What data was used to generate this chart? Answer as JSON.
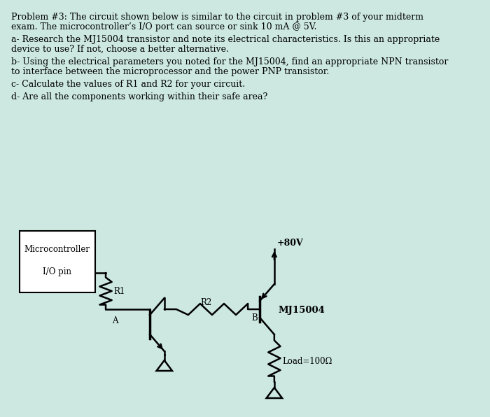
{
  "bg_color": "#cce8e0",
  "text_color": "#000000",
  "title_lines": [
    "Problem #3: The circuit shown below is similar to the circuit in problem #3 of your midterm",
    "exam. The microcontroller’s I/O port can source or sink 10 mA @ 5V."
  ],
  "part_a": "a- Research the MJ15004 transistor and note its electrical characteristics. Is this an appropriate\ndevice to use? If not, choose a better alternative.",
  "part_b": "b- Using the electrical parameters you noted for the MJ15004, find an appropriate NPN transistor\nto interface between the microprocessor and the power PNP transistor.",
  "part_c": "c- Calculate the values of R1 and R2 for your circuit.",
  "part_d": "d- Are all the components working within their safe area?",
  "microcontroller_label": "Microcontroller",
  "io_pin_label": "I/O pin",
  "r1_label": "R1",
  "r2_label": "R2",
  "b_label": "B",
  "a_label": "A",
  "transistor_label": "MJ15004",
  "voltage_label": "+80V",
  "load_label": "Load=100Ω"
}
